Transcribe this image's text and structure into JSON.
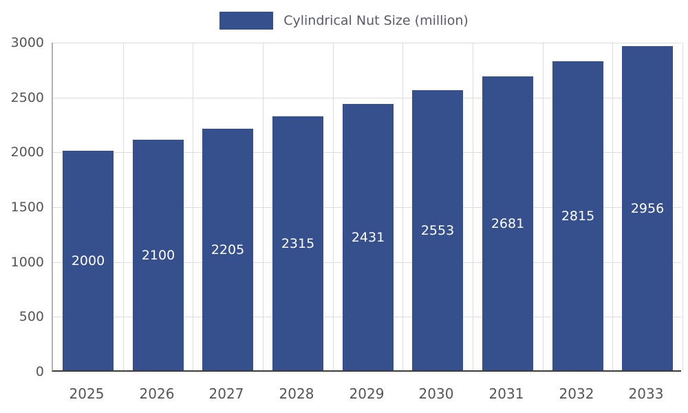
{
  "chart_data": {
    "type": "bar",
    "title": "Cylindrical Nut Size (million)",
    "categories": [
      "2025",
      "2026",
      "2027",
      "2028",
      "2029",
      "2030",
      "2031",
      "2032",
      "2033"
    ],
    "values": [
      2000,
      2100,
      2205,
      2315,
      2431,
      2553,
      2681,
      2815,
      2956
    ],
    "xlabel": "",
    "ylabel": "",
    "ylim": [
      0,
      3000
    ],
    "yticks": [
      0,
      500,
      1000,
      1500,
      2000,
      2500,
      3000
    ],
    "grid": true,
    "legend_position": "top",
    "bar_color": "#35508C",
    "bar_label_color": "#ffffff",
    "axis_text_color": "#555555",
    "grid_color": "#dcdcdc"
  },
  "legend": {
    "label": "Cylindrical Nut Size (million)"
  }
}
